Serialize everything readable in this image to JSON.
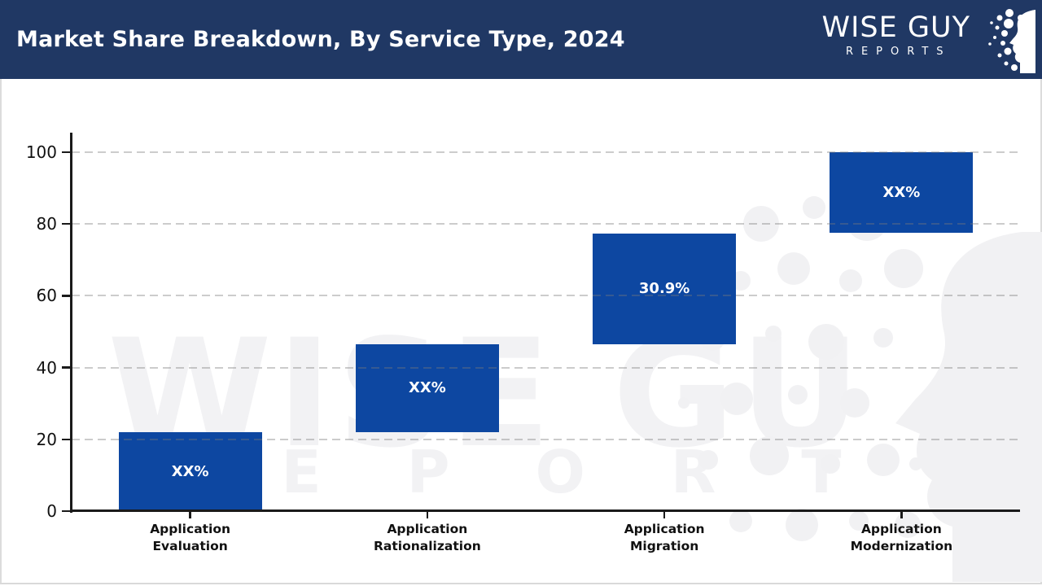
{
  "header": {
    "title": "Market Share Breakdown, By Service Type, 2024",
    "brand_name": "WISE GUY",
    "brand_sub": "REPORTS",
    "bg_color": "#203864"
  },
  "watermark": {
    "line1": "WISE GU",
    "line2": "R E P O R T S"
  },
  "chart_data": {
    "type": "bar",
    "subtype": "floating-waterfall",
    "title": "Market Share Breakdown, By Service Type, 2024",
    "categories": [
      "Application Evaluation",
      "Application Rationalization",
      "Application Migration",
      "Application Modernization"
    ],
    "series": [
      {
        "name": "Market Share %",
        "segments": [
          [
            0,
            22.0
          ],
          [
            22.0,
            46.5
          ],
          [
            46.5,
            77.4
          ],
          [
            77.5,
            100.0
          ]
        ]
      }
    ],
    "bar_labels": [
      "XX%",
      "XX%",
      "30.9%",
      "XX%"
    ],
    "bar_color": "#0d47a1",
    "label_color": "#ffffff",
    "yticks": [
      0,
      20,
      40,
      60,
      80,
      100
    ],
    "ylim": [
      0,
      105.5
    ],
    "xlabel": "",
    "ylabel": "",
    "grid": "horizontal-dashed",
    "legend": "none"
  }
}
